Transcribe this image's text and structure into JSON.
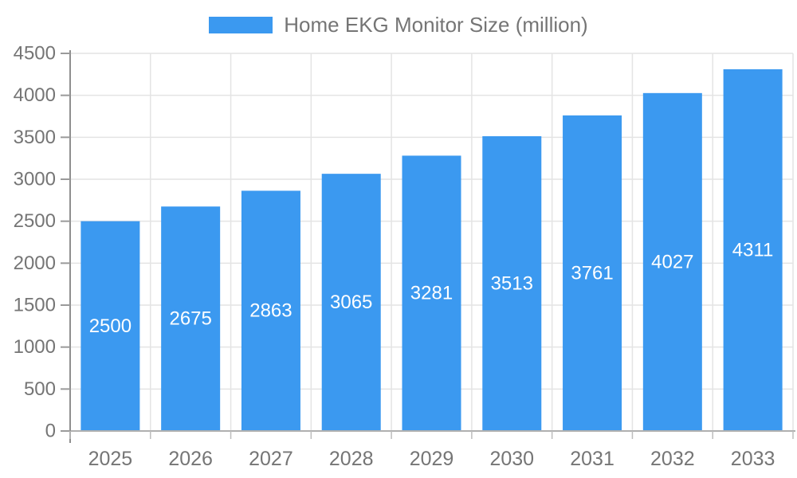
{
  "legend": {
    "label": "Home EKG Monitor Size (million)"
  },
  "chart_data": {
    "type": "bar",
    "title": "Home EKG Monitor Size (million)",
    "categories": [
      "2025",
      "2026",
      "2027",
      "2028",
      "2029",
      "2030",
      "2031",
      "2032",
      "2033"
    ],
    "values": [
      2500,
      2675,
      2863,
      3065,
      3281,
      3513,
      3761,
      4027,
      4311
    ],
    "xlabel": "",
    "ylabel": "",
    "ylim": [
      0,
      4500
    ],
    "ytick_step": 500,
    "grid": true,
    "legend_position": "top",
    "value_labels": "inside-center",
    "colors": {
      "bar": "#3B99F0",
      "value_label": "#ffffff",
      "axis_label": "#757575",
      "y_axis_line": "#8f8f8f",
      "x_axis_line": "#b0b0b0",
      "tick": "#9a9a9a",
      "x_tick": "#bdbdbd",
      "grid_line": "#e4e4e4",
      "background": "#ffffff"
    }
  }
}
